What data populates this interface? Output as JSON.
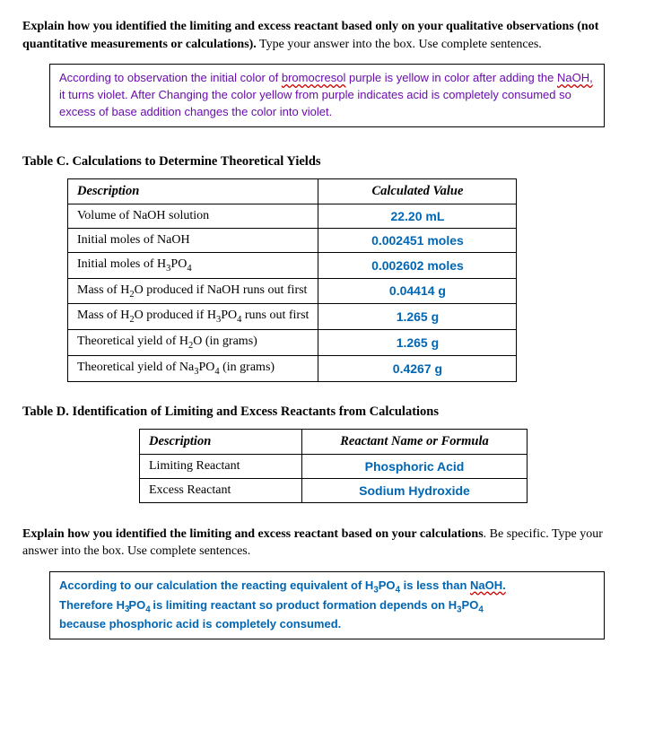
{
  "q1": {
    "prompt_bold": "Explain how you identified the limiting and excess reactant based only on your qualitative observations (not quantitative measurements or calculations).",
    "prompt_plain": "  Type your answer into the box. Use complete sentences.",
    "answer_pre": "According to observation the initial color of ",
    "answer_squiggle1": "bromocresol",
    "answer_mid1": " purple is yellow in color after adding the ",
    "answer_squiggle2": "NaOH,",
    "answer_post": " it turns violet. After Changing the color yellow from purple indicates acid is completely consumed so excess of base addition changes the color into violet."
  },
  "tableC": {
    "title": "Table C.  Calculations to Determine Theoretical Yields",
    "header_desc": "Description",
    "header_val": "Calculated Value",
    "rows": [
      {
        "desc": "Volume of NaOH solution",
        "val": "22.20 mL"
      },
      {
        "desc": "Initial moles of NaOH",
        "val": "0.002451 moles"
      },
      {
        "desc_html": "Initial moles of H<sub>3</sub>PO<sub>4</sub>",
        "val": "0.002602 moles"
      },
      {
        "desc_html": "Mass of H<sub>2</sub>O produced if NaOH runs out first",
        "val": "0.04414 g"
      },
      {
        "desc_html": "Mass of H<sub>2</sub>O produced if H<sub>3</sub>PO<sub>4</sub> runs out first",
        "val": "1.265 g"
      },
      {
        "desc_html": "Theoretical yield of H<sub>2</sub>O (in grams)",
        "val": "1.265 g"
      },
      {
        "desc_html": "Theoretical yield of Na<sub>3</sub>PO<sub>4</sub> (in grams)",
        "val": "0.4267 g"
      }
    ]
  },
  "tableD": {
    "title": "Table D.  Identification of Limiting and Excess Reactants from Calculations",
    "header_desc": "Description",
    "header_val": "Reactant Name or Formula",
    "rows": [
      {
        "desc": "Limiting Reactant",
        "val": "Phosphoric Acid"
      },
      {
        "desc": "Excess Reactant",
        "val": "Sodium Hydroxide"
      }
    ]
  },
  "q2": {
    "prompt_bold": "Explain how you identified the limiting and excess reactant based on your calculations",
    "prompt_plain": ".  Be specific.  Type your answer into the box.  Use complete sentences.",
    "line1_pre": "According to our calculation  the reacting equivalent of H",
    "line1_mid": "PO",
    "line1_post": " is less than ",
    "line1_sq": "NaOH.",
    "line2_pre": "Therefore H",
    "line2_sub3": "3",
    "line2_mid": "PO",
    "line2_sub4": "4",
    "line2_post": "is limiting reactant so product formation depends on H",
    "line2_end": "PO",
    "line3": "because phosphoric acid is completely consumed."
  },
  "colors": {
    "text": "#000000",
    "value_blue": "#0066b3",
    "answer_violet": "#6a0dad",
    "squiggle_red": "#cc0000",
    "background": "#ffffff",
    "border": "#000000"
  }
}
